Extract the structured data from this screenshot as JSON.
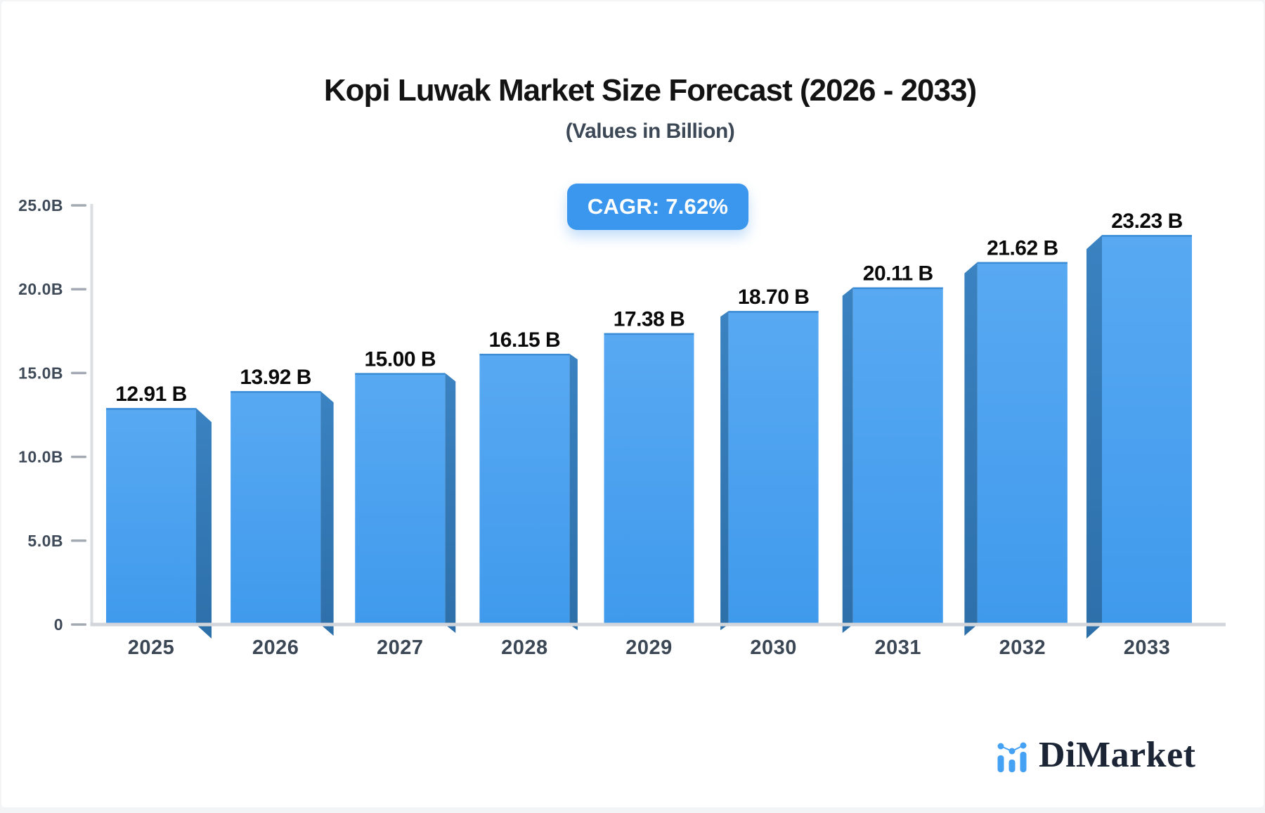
{
  "page": {
    "background": "#f3f4f6",
    "card_background": "#ffffff"
  },
  "header": {
    "title": "Kopi Luwak Market Size Forecast (2026 - 2033)",
    "subtitle": "(Values in Billion)"
  },
  "badge": {
    "label": "CAGR: 7.62%",
    "background": "#3b96ed",
    "text_color": "#ffffff"
  },
  "chart_data": {
    "type": "bar",
    "title": "Kopi Luwak Market Size Forecast (2026 - 2033)",
    "subtitle": "(Values in Billion)",
    "cagr_label": "CAGR: 7.62%",
    "categories": [
      "2025",
      "2026",
      "2027",
      "2028",
      "2029",
      "2030",
      "2031",
      "2032",
      "2033"
    ],
    "values": [
      12.91,
      13.92,
      15.0,
      16.15,
      17.38,
      18.7,
      20.11,
      21.62,
      23.23
    ],
    "value_labels": [
      "12.91 B",
      "13.92 B",
      "15.00 B",
      "16.15 B",
      "17.38 B",
      "18.70 B",
      "20.11 B",
      "21.62 B",
      "23.23 B"
    ],
    "y_ticks": [
      {
        "value": 25,
        "label": "25.0B"
      },
      {
        "value": 20,
        "label": "20.0B"
      },
      {
        "value": 15,
        "label": "15.0B"
      },
      {
        "value": 10,
        "label": "10.0B"
      },
      {
        "value": 5,
        "label": "5.0B"
      },
      {
        "value": 0,
        "label": "0"
      }
    ],
    "ylim": [
      0,
      25
    ],
    "grid": false,
    "legend": false,
    "bar_style": "3d-perspective",
    "colors": {
      "face_top": "#58a9f2",
      "face_bottom": "#409aec",
      "side_top": "#3a82c1",
      "side_bottom": "#2d6fa9",
      "top_edge": "#3a89d3",
      "value_label": "#0a0a0a",
      "category_label": "#3c4756"
    }
  },
  "axis": {
    "tick_label_color": "#3f4a59",
    "tick_mark_color": "#a3aab3",
    "axis_line_color": "#dadde2",
    "baseline_color": "#d2d6db"
  },
  "footer_logo": {
    "text": "DiMarket",
    "icon": "bar-chart-logo-icon",
    "icon_color": "#45a1f4",
    "text_color": "#1c2536"
  }
}
